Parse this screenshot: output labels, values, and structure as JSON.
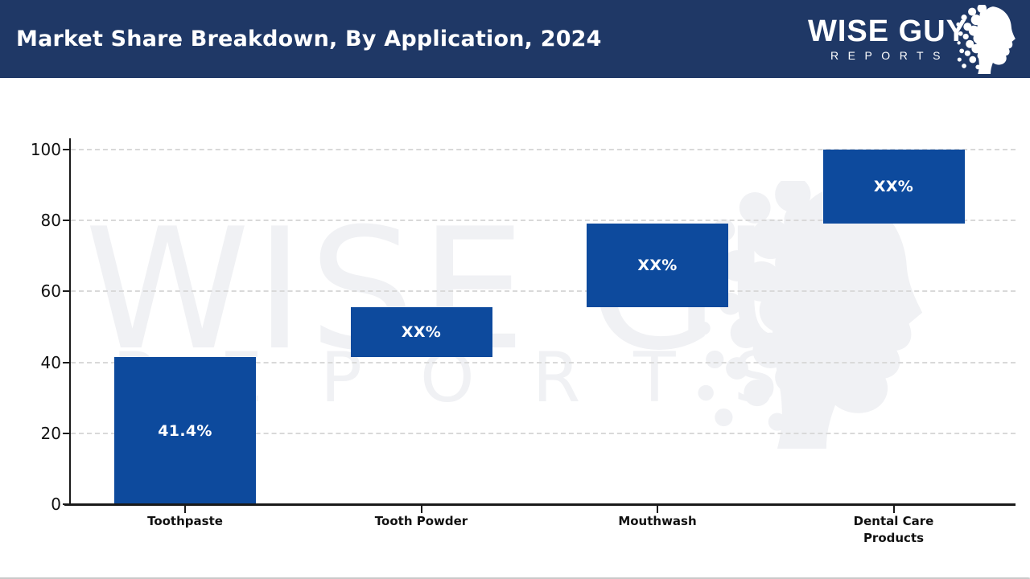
{
  "header": {
    "title": "Market Share Breakdown, By Application, 2024",
    "logo": {
      "line1": "WISE GUY",
      "line2": "REPORTS"
    },
    "bg_color": "#1f3866"
  },
  "watermark": {
    "line1": "WISE GU",
    "line2": "REPORTS"
  },
  "chart_data": {
    "type": "bar",
    "subtype": "waterfall",
    "title": "Market Share Breakdown, By Application, 2024",
    "categories": [
      "Toothpaste",
      "Tooth Powder",
      "Mouthwash",
      "Dental Care Products"
    ],
    "series": [
      {
        "category": "Toothpaste",
        "start": 0,
        "end": 41.4,
        "value": 41.4,
        "label": "41.4%"
      },
      {
        "category": "Tooth Powder",
        "start": 41.4,
        "end": 55.6,
        "value": 14.2,
        "label": "XX%"
      },
      {
        "category": "Mouthwash",
        "start": 55.6,
        "end": 79.2,
        "value": 23.6,
        "label": "XX%"
      },
      {
        "category": "Dental Care Products",
        "start": 79.2,
        "end": 100,
        "value": 20.8,
        "label": "XX%"
      }
    ],
    "xlabel": "",
    "ylabel": "",
    "ylim": [
      0,
      100
    ],
    "yticks": [
      0,
      20,
      40,
      60,
      80,
      100
    ],
    "grid": "horizontal-dashed",
    "legend": "none",
    "bar_color": "#0d4a9d",
    "bar_label_color": "#ffffff",
    "axis_color": "#1a1a1a",
    "gridline_color": "#d9d9d9"
  }
}
